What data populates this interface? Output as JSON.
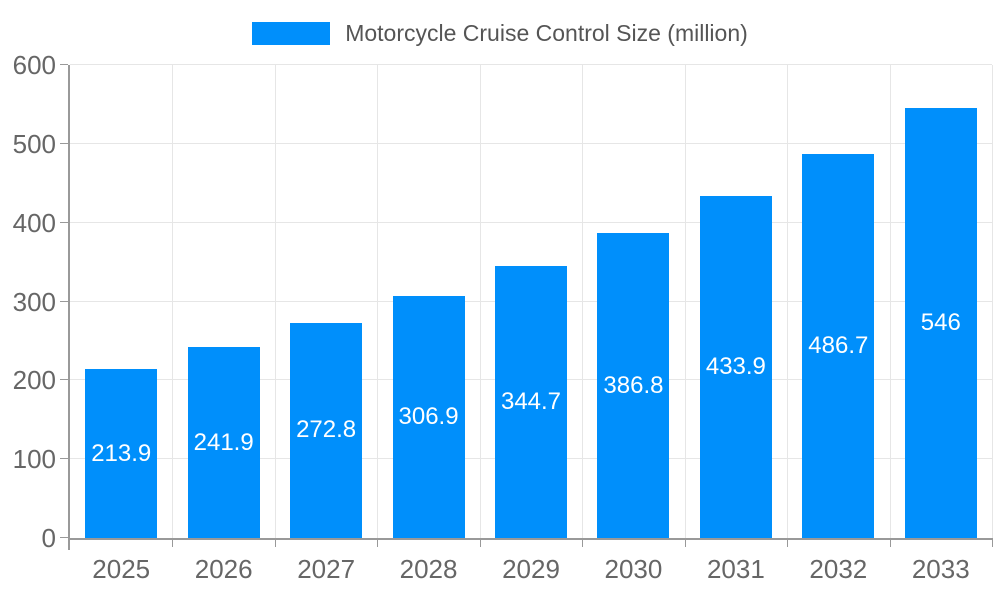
{
  "chart": {
    "legend": {
      "label": "Motorcycle Cruise Control Size (million)"
    },
    "colors": {
      "bar": "#008FFB",
      "axis_line": "#999999",
      "grid_line": "#e6e6e6",
      "tick_text": "#666666",
      "legend_text": "#555555",
      "bar_label_text": "#ffffff",
      "background": "#ffffff"
    }
  },
  "chart_data": {
    "type": "bar",
    "title": "Motorcycle Cruise Control Size (million)",
    "categories": [
      "2025",
      "2026",
      "2027",
      "2028",
      "2029",
      "2030",
      "2031",
      "2032",
      "2033"
    ],
    "series": [
      {
        "name": "Motorcycle Cruise Control Size (million)",
        "values": [
          213.9,
          241.9,
          272.8,
          306.9,
          344.7,
          386.8,
          433.9,
          486.7,
          546
        ]
      }
    ],
    "xlabel": "",
    "ylabel": "",
    "ylim": [
      0,
      600
    ],
    "yticks": [
      0,
      100,
      200,
      300,
      400,
      500,
      600
    ],
    "grid": true,
    "legend_position": "top",
    "value_labels": "inside-center"
  }
}
